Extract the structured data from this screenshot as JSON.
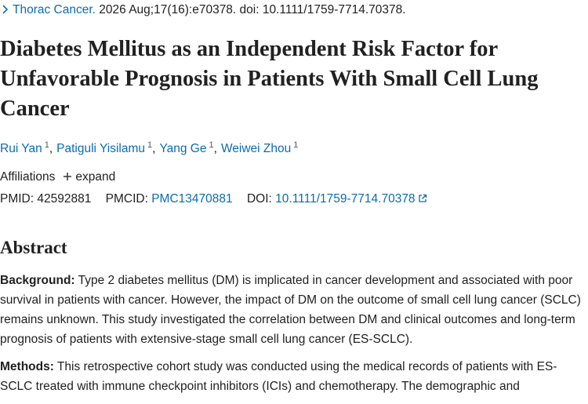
{
  "journal_line": {
    "journal": "Thorac Cancer.",
    "citation": "2026 Aug;17(16):e70378. doi: 10.1111/1759-7714.70378."
  },
  "title": "Diabetes Mellitus as an Independent Risk Factor for Unfavorable Prognosis in Patients With Small Cell Lung Cancer",
  "authors": [
    {
      "name": "Rui Yan",
      "affiliation": "1"
    },
    {
      "name": "Patiguli Yisilamu",
      "affiliation": "1"
    },
    {
      "name": "Yang Ge",
      "affiliation": "1"
    },
    {
      "name": "Weiwei Zhou",
      "affiliation": "1"
    }
  ],
  "affiliations": {
    "label": "Affiliations",
    "toggle": "expand"
  },
  "identifiers": {
    "pmid_label": "PMID:",
    "pmid": "42592881",
    "pmcid_label": "PMCID:",
    "pmcid": "PMC13470881",
    "doi_label": "DOI:",
    "doi": "10.1111/1759-7714.70378"
  },
  "abstract": {
    "heading": "Abstract",
    "sections": [
      {
        "label": "Background:",
        "text": "Type 2 diabetes mellitus (DM) is implicated in cancer development and associated with poor survival in patients with cancer. However, the impact of DM on the outcome of small cell lung cancer (SCLC) remains unknown. This study investigated the correlation between DM and clinical outcomes and long-term prognosis of patients with extensive-stage small cell lung cancer (ES-SCLC)."
      },
      {
        "label": "Methods:",
        "text": "This retrospective cohort study was conducted using the medical records of patients with ES-SCLC treated with immune checkpoint inhibitors (ICIs) and chemotherapy. The demographic and"
      }
    ]
  }
}
